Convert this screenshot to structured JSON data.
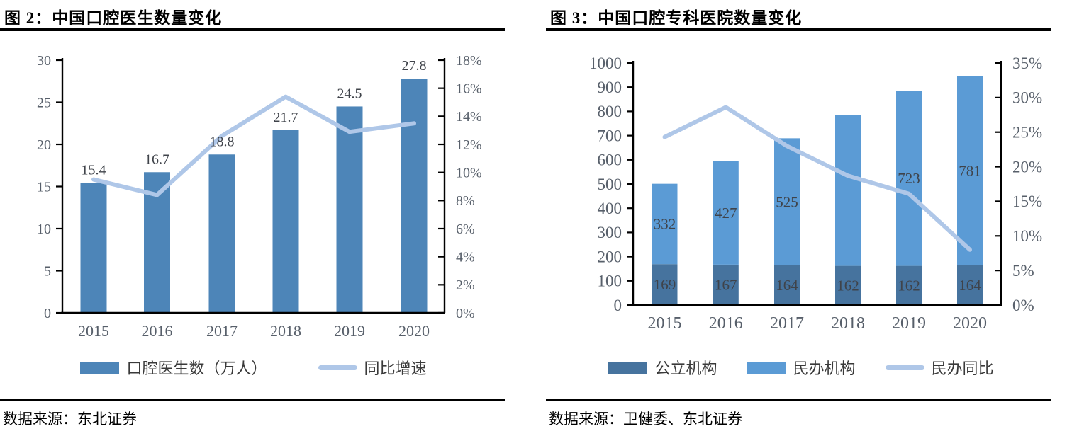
{
  "page": {
    "background": "#ffffff"
  },
  "colors": {
    "fig2_bar": "#4D85B8",
    "fig3_public_bar": "#46739E",
    "fig3_private_bar": "#5B9BD5",
    "growth_line": "#AFC7E8",
    "axis": "#000000",
    "tick_text": "#575f6a",
    "bar_label_text": "#3f434a"
  },
  "panels": [
    {
      "title": "图 2：中国口腔医生数量变化",
      "source": "数据来源：东北证券",
      "legend": [
        {
          "label": "口腔医生数（万人）",
          "swatch": "bar",
          "color": "#4D85B8"
        },
        {
          "label": "同比增速",
          "swatch": "line",
          "color": "#AFC7E8"
        }
      ]
    },
    {
      "title": "图 3：中国口腔专科医院数量变化",
      "source": "数据来源：卫健委、东北证券",
      "legend": [
        {
          "label": "公立机构",
          "swatch": "bar",
          "color": "#46739E"
        },
        {
          "label": "民办机构",
          "swatch": "bar",
          "color": "#5B9BD5"
        },
        {
          "label": "民办同比",
          "swatch": "line",
          "color": "#AFC7E8"
        }
      ]
    }
  ],
  "chart_data": [
    {
      "type": "bar",
      "title": "图 2：中国口腔医生数量变化",
      "categories": [
        "2015",
        "2016",
        "2017",
        "2018",
        "2019",
        "2020"
      ],
      "series": [
        {
          "name": "口腔医生数（万人）",
          "type": "bar",
          "axis": "left",
          "color": "#4D85B8",
          "values": [
            15.4,
            16.7,
            18.8,
            21.7,
            24.5,
            27.8
          ],
          "value_labels": [
            "15.4",
            "16.7",
            "18.8",
            "21.7",
            "24.5",
            "27.8"
          ]
        },
        {
          "name": "同比增速",
          "type": "line",
          "axis": "right",
          "color": "#AFC7E8",
          "values": [
            9.5,
            8.4,
            12.6,
            15.4,
            12.9,
            13.5
          ],
          "value_labels": [
            "",
            "",
            "",
            "",
            "",
            ""
          ]
        }
      ],
      "left_axis": {
        "min": 0,
        "max": 30,
        "step": 5,
        "tick_labels": [
          "0",
          "5",
          "10",
          "15",
          "20",
          "25",
          "30"
        ]
      },
      "right_axis": {
        "min": 0,
        "max": 18,
        "step": 2,
        "tick_labels": [
          "0%",
          "2%",
          "4%",
          "6%",
          "8%",
          "10%",
          "12%",
          "14%",
          "16%",
          "18%"
        ]
      },
      "grid": false,
      "legend_position": "bottom"
    },
    {
      "type": "bar",
      "title": "图 3：中国口腔专科医院数量变化",
      "categories": [
        "2015",
        "2016",
        "2017",
        "2018",
        "2019",
        "2020"
      ],
      "series": [
        {
          "name": "公立机构",
          "type": "bar",
          "stack": "total",
          "axis": "left",
          "color": "#46739E",
          "values": [
            169,
            167,
            164,
            162,
            162,
            164
          ],
          "value_labels": [
            "169",
            "167",
            "164",
            "162",
            "162",
            "164"
          ]
        },
        {
          "name": "民办机构",
          "type": "bar",
          "stack": "total",
          "axis": "left",
          "color": "#5B9BD5",
          "values": [
            332,
            427,
            525,
            623,
            723,
            781
          ],
          "value_labels": [
            "332",
            "427",
            "525",
            "",
            "723",
            "781"
          ]
        },
        {
          "name": "民办同比",
          "type": "line",
          "axis": "right",
          "color": "#AFC7E8",
          "values": [
            24.3,
            28.6,
            23.0,
            18.7,
            16.1,
            8.0
          ],
          "value_labels": [
            "",
            "",
            "",
            "",
            "",
            ""
          ]
        }
      ],
      "left_axis": {
        "min": 0,
        "max": 1000,
        "step": 100,
        "tick_labels": [
          "0",
          "100",
          "200",
          "300",
          "400",
          "500",
          "600",
          "700",
          "800",
          "900",
          "1000"
        ]
      },
      "right_axis": {
        "min": 0,
        "max": 35,
        "step": 5,
        "tick_labels": [
          "0%",
          "5%",
          "10%",
          "15%",
          "20%",
          "25%",
          "30%",
          "35%"
        ]
      },
      "grid": false,
      "legend_position": "bottom"
    }
  ]
}
